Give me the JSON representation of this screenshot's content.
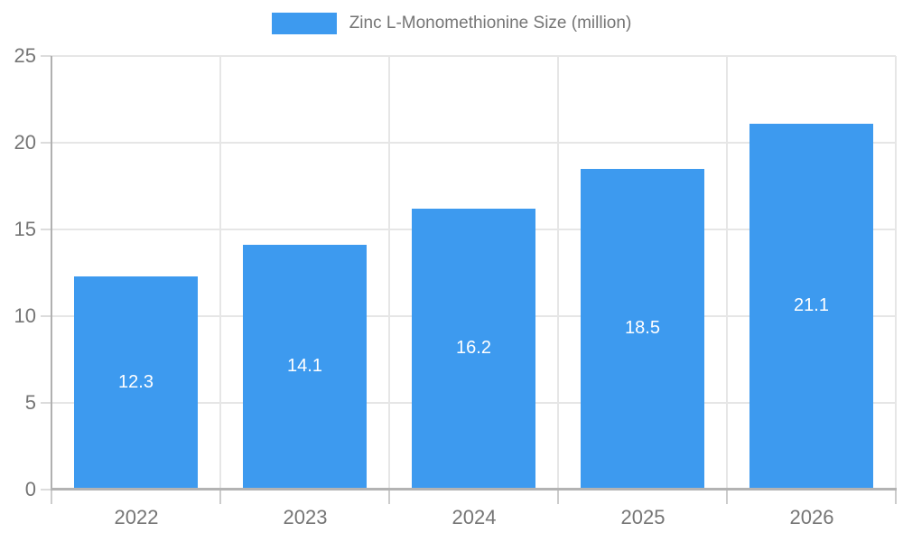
{
  "legend": {
    "label": "Zinc L-Monomethionine Size (million)",
    "swatch_color": "#3d9aef"
  },
  "chart_data": {
    "type": "bar",
    "title": "Zinc L-Monomethionine Size (million)",
    "categories": [
      "2022",
      "2023",
      "2024",
      "2025",
      "2026"
    ],
    "values": [
      12.3,
      14.1,
      16.2,
      18.5,
      21.1
    ],
    "value_labels": [
      "12.3",
      "14.1",
      "16.2",
      "18.5",
      "21.1"
    ],
    "xlabel": "",
    "ylabel": "",
    "ylim": [
      0,
      25
    ],
    "yticks": [
      0,
      5,
      10,
      15,
      20,
      25
    ],
    "ytick_labels": [
      "0",
      "5",
      "10",
      "15",
      "20",
      "25"
    ],
    "grid": true,
    "legend_position": "top",
    "bar_color": "#3d9aef",
    "value_label_color": "#ffffff",
    "axis_text_color": "#757575"
  }
}
